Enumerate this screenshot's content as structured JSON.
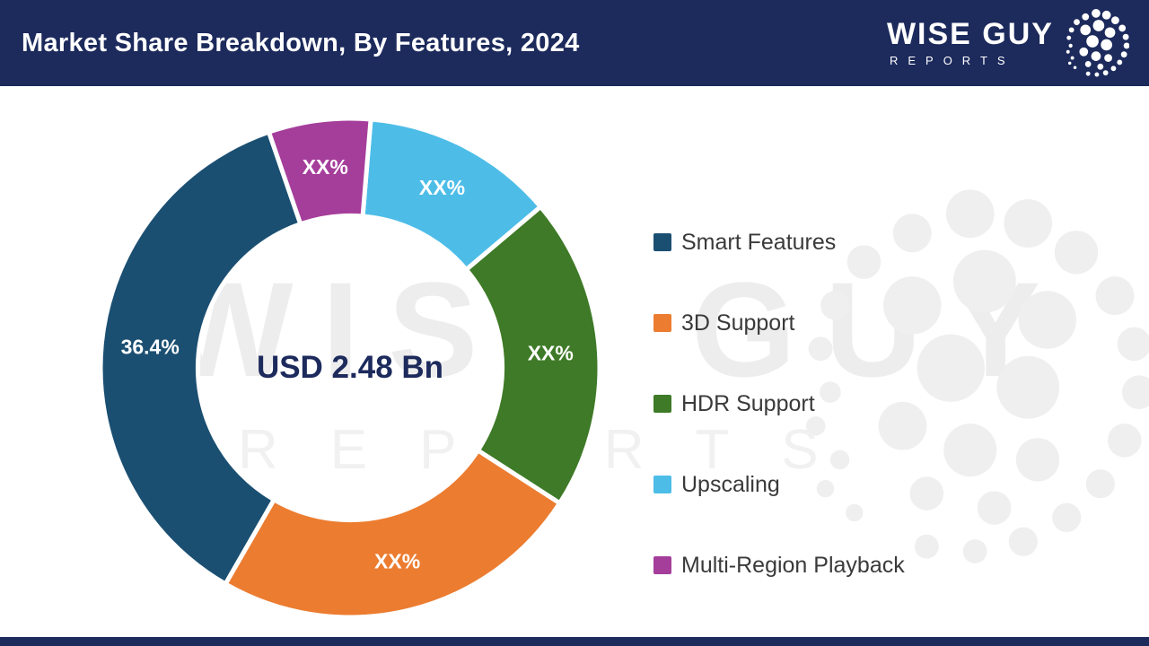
{
  "header": {
    "title": "Market Share Breakdown, By Features, 2024",
    "logo": {
      "line1": "WISE GUY",
      "line2": "REPORTS"
    }
  },
  "watermark": {
    "line1": "WISE GUY",
    "line2": "REPORTS"
  },
  "chart_data": {
    "type": "pie",
    "subtype": "donut",
    "title": "Market Share Breakdown, By Features, 2024",
    "center_label": "USD 2.48 Bn",
    "start_angle_deg": 341,
    "direction": "ccw",
    "inner_radius_ratio": 0.61,
    "segments": [
      {
        "label": "Smart Features",
        "value": 36.4,
        "display": "36.4%",
        "color": "#1b4f72"
      },
      {
        "label": "3D Support",
        "value": 24.2,
        "display": "XX%",
        "color": "#ec7c30"
      },
      {
        "label": "HDR Support",
        "value": 20.3,
        "display": "XX%",
        "color": "#3e7a27"
      },
      {
        "label": "Upscaling",
        "value": 12.5,
        "display": "XX%",
        "color": "#4dbde8"
      },
      {
        "label": "Multi-Region Playback",
        "value": 6.6,
        "display": "XX%",
        "color": "#a53e9b"
      }
    ],
    "legend_position": "right"
  }
}
